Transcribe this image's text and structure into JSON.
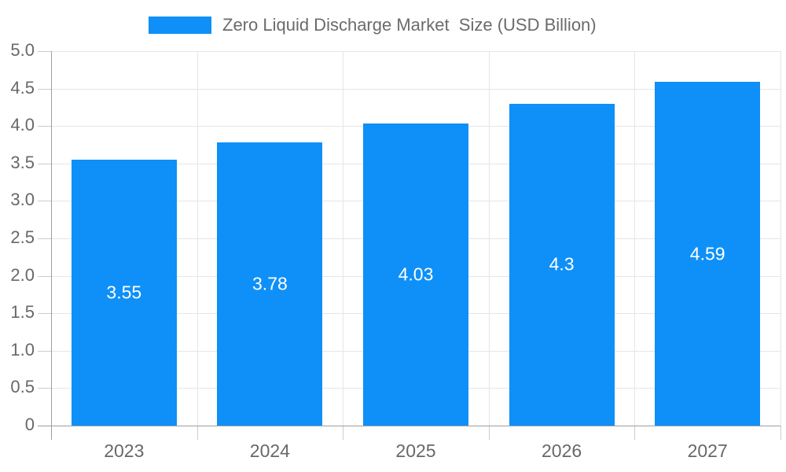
{
  "legend": {
    "label": "Zero Liquid Discharge Market  Size (USD Billion)"
  },
  "chart_data": {
    "type": "bar",
    "title": "Zero Liquid Discharge Market  Size (USD Billion)",
    "categories": [
      "2023",
      "2024",
      "2025",
      "2026",
      "2027"
    ],
    "values": [
      3.55,
      3.78,
      4.03,
      4.3,
      4.59
    ],
    "value_labels": [
      "3.55",
      "3.78",
      "4.03",
      "4.3",
      "4.59"
    ],
    "xlabel": "",
    "ylabel": "",
    "ylim": [
      0,
      5.0
    ],
    "ytick_step": 0.5,
    "ytick_values": [
      0,
      0.5,
      1.0,
      1.5,
      2.0,
      2.5,
      3.0,
      3.5,
      4.0,
      4.5,
      5.0
    ],
    "ytick_labels": [
      "0",
      "0.5",
      "1.0",
      "1.5",
      "2.0",
      "2.5",
      "3.0",
      "3.5",
      "4.0",
      "4.5",
      "5.0"
    ],
    "grid": true,
    "legend_position": "top-center",
    "bar_color": "#0e90f8",
    "value_label_color": "#ffffff",
    "grid_color": "#e6e6e6",
    "tick_color": "#cccccc",
    "axis_color": "#9e9e9e",
    "label_color": "#686868",
    "legend_text_color": "#6b6b6b"
  }
}
